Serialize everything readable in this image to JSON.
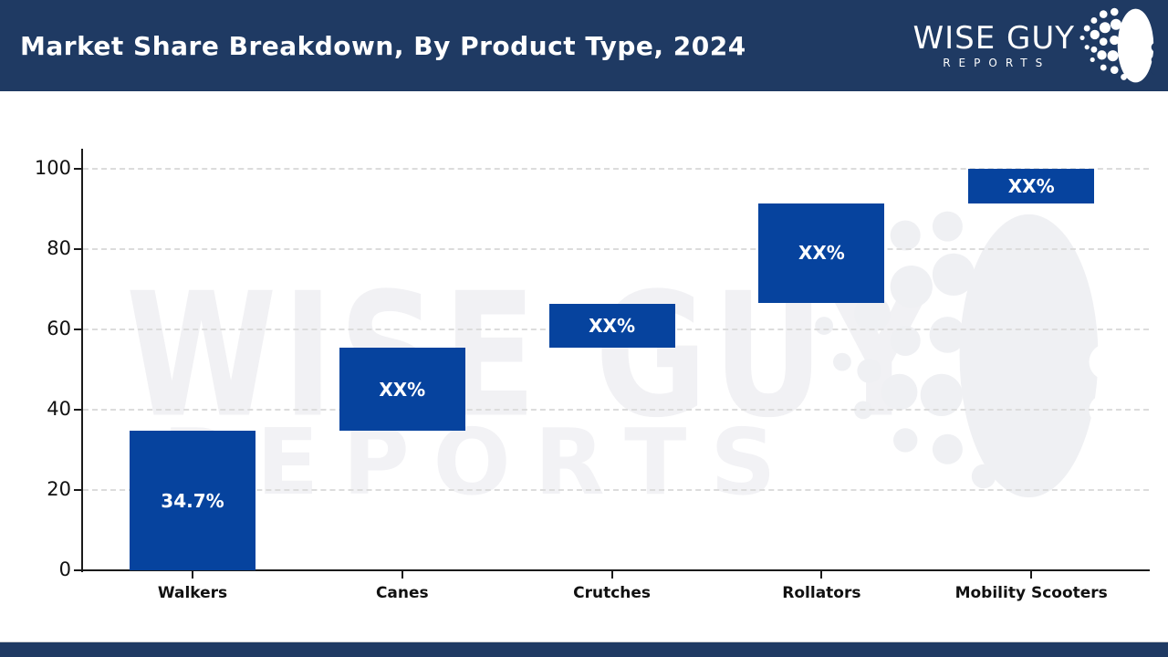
{
  "header": {
    "title": "Market Share Breakdown, By Product Type, 2024",
    "bg_color": "#1f3a63",
    "logo": {
      "line1": "WISE GUY",
      "line2": "REPORTS"
    }
  },
  "watermark": {
    "line1": "WISE GUY",
    "line2": "REPORTS"
  },
  "chart_data": {
    "type": "bar",
    "subtype": "waterfall",
    "title": "Market Share Breakdown, By Product Type, 2024",
    "categories": [
      "Walkers",
      "Canes",
      "Crutches",
      "Rollators",
      "Mobility Scooters"
    ],
    "segments": [
      {
        "category": "Walkers",
        "start": 0,
        "end": 34.7,
        "label": "34.7%"
      },
      {
        "category": "Canes",
        "start": 34.7,
        "end": 55.4,
        "label": "XX%"
      },
      {
        "category": "Crutches",
        "start": 55.6,
        "end": 66.4,
        "label": "XX%"
      },
      {
        "category": "Rollators",
        "start": 66.6,
        "end": 91.5,
        "label": "XX%"
      },
      {
        "category": "Mobility Scooters",
        "start": 91.5,
        "end": 100,
        "label": "XX%"
      }
    ],
    "yticks": [
      0,
      20,
      40,
      60,
      80,
      100
    ],
    "ylim": [
      0,
      105
    ],
    "xlabel": "",
    "ylabel": "",
    "grid": "horizontal-dashed",
    "legend": "none",
    "bar_color": "#06439e",
    "bar_label_color": "#ffffff",
    "axis_color": "#1a1a1a"
  }
}
